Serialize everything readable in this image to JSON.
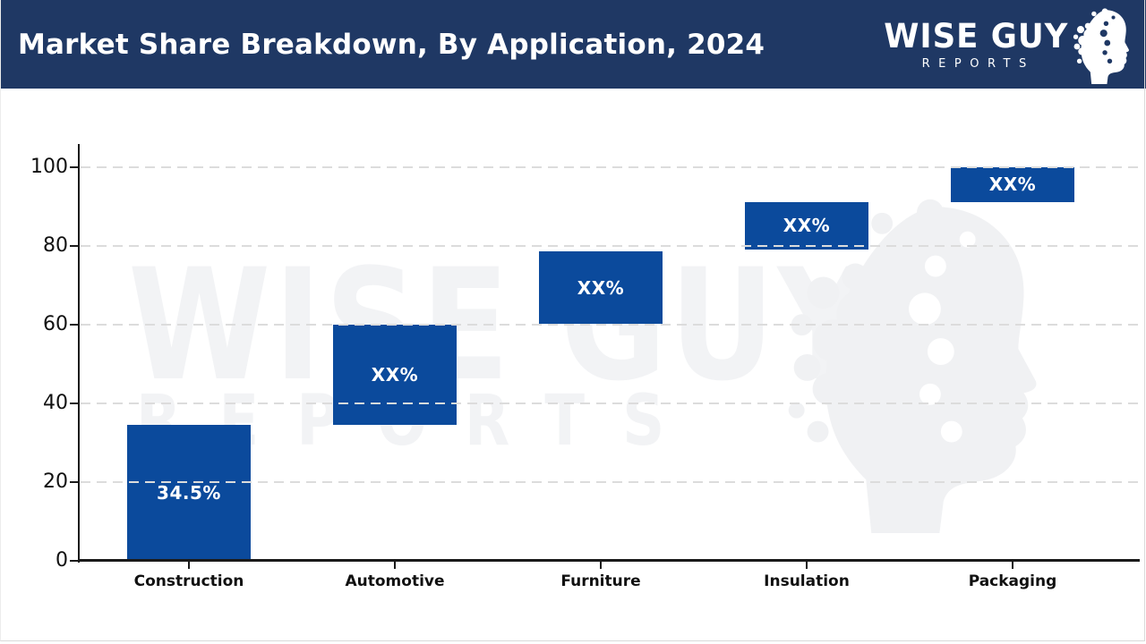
{
  "header": {
    "title": "Market Share Breakdown, By Application, 2024",
    "brand": {
      "name": "WISE GUY",
      "sub": "REPORTS"
    }
  },
  "watermark": {
    "line1": "WISE GUY",
    "line2": "REPORTS"
  },
  "colors": {
    "header_bg": "#1f3864",
    "bar": "#0b4a9c",
    "grid": "#dcdcdc",
    "axis": "#1a1a1a",
    "label_on_bar": "#ffffff",
    "watermark": "#f2f3f5"
  },
  "chart_data": {
    "type": "bar",
    "subtype": "waterfall",
    "title": "Market Share Breakdown, By Application, 2024",
    "categories": [
      "Construction",
      "Automotive",
      "Furniture",
      "Insulation",
      "Packaging"
    ],
    "segments": [
      [
        0,
        34.5
      ],
      [
        34.5,
        60
      ],
      [
        60,
        78.5
      ],
      [
        79,
        91
      ],
      [
        91,
        100
      ]
    ],
    "values": [
      34.5,
      25.5,
      18.5,
      12,
      9
    ],
    "bar_labels": [
      "34.5%",
      "XX%",
      "XX%",
      "XX%",
      "XX%"
    ],
    "yticks": [
      0,
      20,
      40,
      60,
      80,
      100
    ],
    "ylim": [
      0,
      105
    ],
    "xlabel": "",
    "ylabel": "",
    "grid": "dashed-horizontal",
    "legend": "none"
  }
}
